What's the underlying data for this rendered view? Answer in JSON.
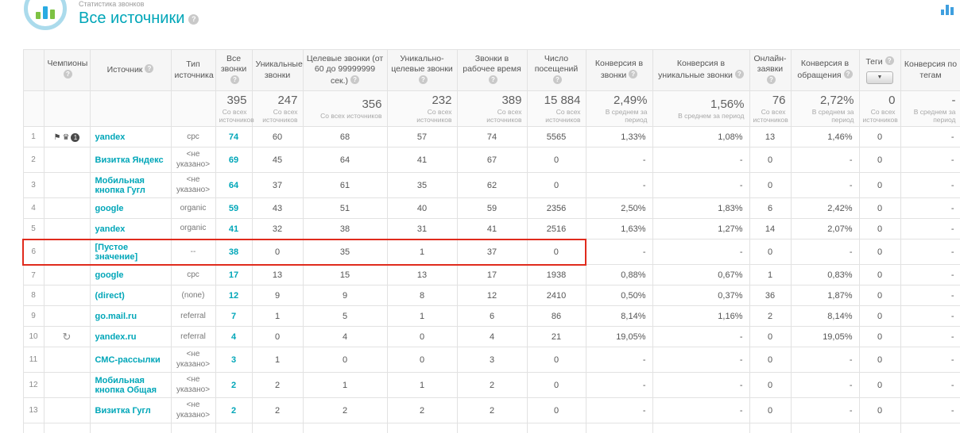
{
  "header": {
    "subtitle": "Статистика звонков",
    "title": "Все источники",
    "help_glyph": "?"
  },
  "accent_colors": {
    "link_teal": "#00a6b8",
    "highlight_red": "#e02b1d",
    "logo_green": "#7dc243",
    "logo_blue": "#29abe2"
  },
  "table": {
    "help_glyph": "?",
    "caret_glyph": "▼",
    "highlight": {
      "through_column": "visits",
      "color": "#e02b1d"
    },
    "columns": [
      {
        "key": "num",
        "label": ""
      },
      {
        "key": "champions",
        "label": "Чемпионы",
        "help": true
      },
      {
        "key": "source",
        "label": "Источник",
        "help": true
      },
      {
        "key": "source_type",
        "label": "Тип источника"
      },
      {
        "key": "all_calls",
        "label": "Все звонки",
        "help": true
      },
      {
        "key": "unique_calls",
        "label": "Уникальные звонки"
      },
      {
        "key": "target_calls",
        "label": "Целевые звонки (от 60 до 99999999 сек.)",
        "help": true
      },
      {
        "key": "unique_target_calls",
        "label": "Уникально-целевые звонки",
        "help": true
      },
      {
        "key": "working_hours_calls",
        "label": "Звонки в рабочее время",
        "help": true
      },
      {
        "key": "visits",
        "label": "Число посещений",
        "help": true
      },
      {
        "key": "conv_calls",
        "label": "Конверсия в звонки",
        "help": true
      },
      {
        "key": "conv_unique_calls",
        "label": "Конверсия в уникальные звонки",
        "help": true
      },
      {
        "key": "online_leads",
        "label": "Онлайн-заявки",
        "help": true
      },
      {
        "key": "conv_appeals",
        "label": "Конверсия в обращения",
        "help": true
      },
      {
        "key": "tags",
        "label": "Теги",
        "help": true,
        "dropdown": true
      },
      {
        "key": "conv_tags",
        "label": "Конверсия по тегам"
      }
    ],
    "summary": {
      "all_calls": {
        "value": "395",
        "caption": "Со всех источников"
      },
      "unique_calls": {
        "value": "247",
        "caption": "Со всех источников"
      },
      "target_calls": {
        "value": "356",
        "caption": "Со всех источников"
      },
      "unique_target_calls": {
        "value": "232",
        "caption": "Со всех источников"
      },
      "working_hours_calls": {
        "value": "389",
        "caption": "Со всех источников"
      },
      "visits": {
        "value": "15 884",
        "caption": "Со всех источников"
      },
      "conv_calls": {
        "value": "2,49%",
        "caption": "В среднем за период"
      },
      "conv_unique_calls": {
        "value": "1,56%",
        "caption": "В среднем за период"
      },
      "online_leads": {
        "value": "76",
        "caption": "Со всех источников"
      },
      "conv_appeals": {
        "value": "2,72%",
        "caption": "В среднем за период"
      },
      "tags": {
        "value": "0",
        "caption": "Со всех источников"
      },
      "conv_tags": {
        "value": "-",
        "caption": "В среднем за период"
      }
    },
    "rows": [
      {
        "num": "1",
        "champions": [
          {
            "name": "bell-icon",
            "glyph": "⚑"
          },
          {
            "name": "trophy-icon",
            "glyph": "♛"
          },
          {
            "name": "rank-1-icon",
            "glyph": "1",
            "circle": true
          }
        ],
        "source": "yandex",
        "source_type": "cpc",
        "all_calls": "74",
        "unique_calls": "60",
        "target_calls": "68",
        "unique_target_calls": "57",
        "working_hours_calls": "74",
        "visits": "5565",
        "conv_calls": "1,33%",
        "conv_unique_calls": "1,08%",
        "online_leads": "13",
        "conv_appeals": "1,46%",
        "tags": "0",
        "conv_tags": "-"
      },
      {
        "num": "2",
        "source": "Визитка Яндекс",
        "source_type": "<не указано>",
        "all_calls": "69",
        "unique_calls": "45",
        "target_calls": "64",
        "unique_target_calls": "41",
        "working_hours_calls": "67",
        "visits": "0",
        "conv_calls": "-",
        "conv_unique_calls": "-",
        "online_leads": "0",
        "conv_appeals": "-",
        "tags": "0",
        "conv_tags": "-"
      },
      {
        "num": "3",
        "source": "Мобильная кнопка Гугл",
        "source_type": "<не указано>",
        "all_calls": "64",
        "unique_calls": "37",
        "target_calls": "61",
        "unique_target_calls": "35",
        "working_hours_calls": "62",
        "visits": "0",
        "conv_calls": "-",
        "conv_unique_calls": "-",
        "online_leads": "0",
        "conv_appeals": "-",
        "tags": "0",
        "conv_tags": "-"
      },
      {
        "num": "4",
        "source": "google",
        "source_type": "organic",
        "all_calls": "59",
        "unique_calls": "43",
        "target_calls": "51",
        "unique_target_calls": "40",
        "working_hours_calls": "59",
        "visits": "2356",
        "conv_calls": "2,50%",
        "conv_unique_calls": "1,83%",
        "online_leads": "6",
        "conv_appeals": "2,42%",
        "tags": "0",
        "conv_tags": "-"
      },
      {
        "num": "5",
        "source": "yandex",
        "source_type": "organic",
        "all_calls": "41",
        "unique_calls": "32",
        "target_calls": "38",
        "unique_target_calls": "31",
        "working_hours_calls": "41",
        "visits": "2516",
        "conv_calls": "1,63%",
        "conv_unique_calls": "1,27%",
        "online_leads": "14",
        "conv_appeals": "2,07%",
        "tags": "0",
        "conv_tags": "-"
      },
      {
        "num": "6",
        "highlighted": true,
        "source": "[Пустое значение]",
        "source_type": "--",
        "all_calls": "38",
        "unique_calls": "0",
        "target_calls": "35",
        "unique_target_calls": "1",
        "working_hours_calls": "37",
        "visits": "0",
        "conv_calls": "-",
        "conv_unique_calls": "-",
        "online_leads": "0",
        "conv_appeals": "-",
        "tags": "0",
        "conv_tags": "-"
      },
      {
        "num": "7",
        "source": "google",
        "source_type": "cpc",
        "all_calls": "17",
        "unique_calls": "13",
        "target_calls": "15",
        "unique_target_calls": "13",
        "working_hours_calls": "17",
        "visits": "1938",
        "conv_calls": "0,88%",
        "conv_unique_calls": "0,67%",
        "online_leads": "1",
        "conv_appeals": "0,83%",
        "tags": "0",
        "conv_tags": "-"
      },
      {
        "num": "8",
        "source": "(direct)",
        "source_type": "(none)",
        "all_calls": "12",
        "unique_calls": "9",
        "target_calls": "9",
        "unique_target_calls": "8",
        "working_hours_calls": "12",
        "visits": "2410",
        "conv_calls": "0,50%",
        "conv_unique_calls": "0,37%",
        "online_leads": "36",
        "conv_appeals": "1,87%",
        "tags": "0",
        "conv_tags": "-"
      },
      {
        "num": "9",
        "source": "go.mail.ru",
        "source_type": "referral",
        "all_calls": "7",
        "unique_calls": "1",
        "target_calls": "5",
        "unique_target_calls": "1",
        "working_hours_calls": "6",
        "visits": "86",
        "conv_calls": "8,14%",
        "conv_unique_calls": "1,16%",
        "online_leads": "2",
        "conv_appeals": "8,14%",
        "tags": "0",
        "conv_tags": "-"
      },
      {
        "num": "10",
        "champions": [
          {
            "name": "refresh-icon",
            "glyph": "↻",
            "refresh": true
          }
        ],
        "source": "yandex.ru",
        "source_type": "referral",
        "all_calls": "4",
        "unique_calls": "0",
        "target_calls": "4",
        "unique_target_calls": "0",
        "working_hours_calls": "4",
        "visits": "21",
        "conv_calls": "19,05%",
        "conv_unique_calls": "-",
        "online_leads": "0",
        "conv_appeals": "19,05%",
        "tags": "0",
        "conv_tags": "-"
      },
      {
        "num": "11",
        "source": "СМС-рассылки",
        "source_type": "<не указано>",
        "all_calls": "3",
        "unique_calls": "1",
        "target_calls": "0",
        "unique_target_calls": "0",
        "working_hours_calls": "3",
        "visits": "0",
        "conv_calls": "-",
        "conv_unique_calls": "-",
        "online_leads": "0",
        "conv_appeals": "-",
        "tags": "0",
        "conv_tags": "-"
      },
      {
        "num": "12",
        "source": "Мобильная кнопка Общая",
        "source_type": "<не указано>",
        "all_calls": "2",
        "unique_calls": "2",
        "target_calls": "1",
        "unique_target_calls": "1",
        "working_hours_calls": "2",
        "visits": "0",
        "conv_calls": "-",
        "conv_unique_calls": "-",
        "online_leads": "0",
        "conv_appeals": "-",
        "tags": "0",
        "conv_tags": "-"
      },
      {
        "num": "13",
        "source": "Визитка Гугл",
        "source_type": "<не указано>",
        "all_calls": "2",
        "unique_calls": "2",
        "target_calls": "2",
        "unique_target_calls": "2",
        "working_hours_calls": "2",
        "visits": "0",
        "conv_calls": "-",
        "conv_unique_calls": "-",
        "online_leads": "0",
        "conv_appeals": "-",
        "tags": "0",
        "conv_tags": "-"
      }
    ]
  }
}
